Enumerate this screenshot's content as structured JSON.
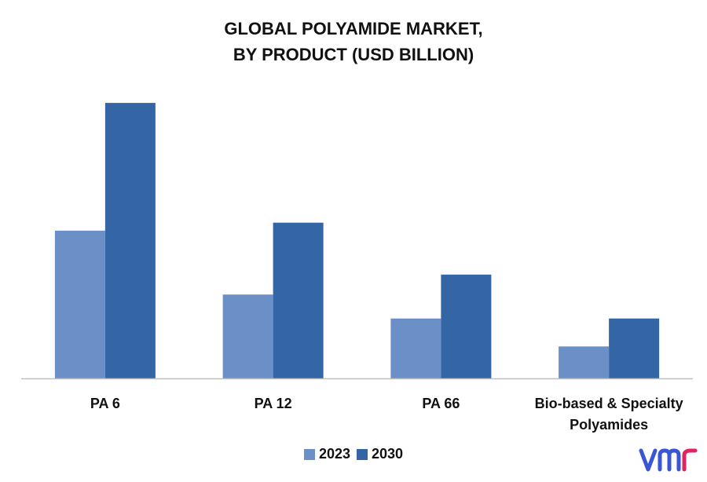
{
  "chart_data": {
    "type": "bar",
    "title": "GLOBAL POLYAMIDE MARKET,",
    "subtitle": "BY PRODUCT (USD BILLION)",
    "categories": [
      [
        "PA 6"
      ],
      [
        "PA 12"
      ],
      [
        "PA 66"
      ],
      [
        "Bio-based & Specialty",
        "Polyamides"
      ]
    ],
    "series": [
      {
        "name": "2023",
        "color": "#6b8fc7",
        "values": [
          18.5,
          10.5,
          7.5,
          4.0
        ]
      },
      {
        "name": "2030",
        "color": "#3466a6",
        "values": [
          34.5,
          19.5,
          13.0,
          7.5
        ]
      }
    ],
    "ylim": [
      0,
      35
    ],
    "grid": false,
    "legend_position": "bottom"
  },
  "logo": {
    "name": "vmr-logo",
    "color": "#3a56d4"
  }
}
